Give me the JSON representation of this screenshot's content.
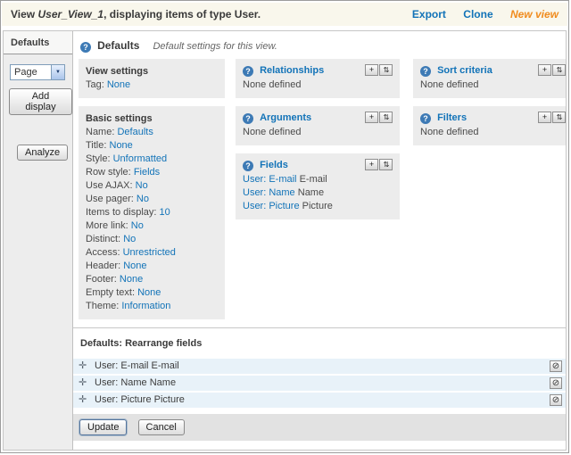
{
  "header": {
    "title_prefix": "View",
    "view_name": "User_View_1",
    "title_suffix": ", displaying items of type User.",
    "links": {
      "export": "Export",
      "clone": "Clone",
      "new_view": "New view"
    }
  },
  "sidebar": {
    "tab_label": "Defaults",
    "display_select_value": "Page",
    "add_display_label": "Add display",
    "analyze_label": "Analyze"
  },
  "main": {
    "section_title": "Defaults",
    "section_description": "Default settings for this view.",
    "view_settings": {
      "title": "View settings",
      "items": [
        {
          "label": "Tag:",
          "value": "None"
        }
      ]
    },
    "basic_settings": {
      "title": "Basic settings",
      "items": [
        {
          "label": "Name:",
          "value": "Defaults"
        },
        {
          "label": "Title:",
          "value": "None"
        },
        {
          "label": "Style:",
          "value": "Unformatted"
        },
        {
          "label": "Row style:",
          "value": "Fields"
        },
        {
          "label": "Use AJAX:",
          "value": "No"
        },
        {
          "label": "Use pager:",
          "value": "No"
        },
        {
          "label": "Items to display:",
          "value": "10"
        },
        {
          "label": "More link:",
          "value": "No"
        },
        {
          "label": "Distinct:",
          "value": "No"
        },
        {
          "label": "Access:",
          "value": "Unrestricted"
        },
        {
          "label": "Header:",
          "value": "None"
        },
        {
          "label": "Footer:",
          "value": "None"
        },
        {
          "label": "Empty text:",
          "value": "None"
        },
        {
          "label": "Theme:",
          "value": "Information"
        }
      ]
    },
    "relationships": {
      "title": "Relationships",
      "empty": "None defined"
    },
    "arguments": {
      "title": "Arguments",
      "empty": "None defined"
    },
    "fields": {
      "title": "Fields",
      "items": [
        {
          "link": "User: E-mail",
          "suffix": "E-mail"
        },
        {
          "link": "User: Name",
          "suffix": "Name"
        },
        {
          "link": "User: Picture",
          "suffix": "Picture"
        }
      ]
    },
    "sort_criteria": {
      "title": "Sort criteria",
      "empty": "None defined"
    },
    "filters": {
      "title": "Filters",
      "empty": "None defined"
    }
  },
  "rearrange": {
    "title": "Defaults: Rearrange fields",
    "rows": [
      "User: E-mail E-mail",
      "User: Name Name",
      "User: Picture Picture"
    ],
    "update_label": "Update",
    "cancel_label": "Cancel"
  },
  "icons": {
    "help": "?",
    "add": "+",
    "rearrange": "⇅",
    "drag": "✛",
    "remove": "⊘",
    "select_arrow": "▼"
  },
  "colors": {
    "link_blue": "#1273b8",
    "accent_orange": "#f08b1d",
    "topbar_bg": "#f9f7ec",
    "box_bg": "#ececec",
    "row_blue": "#e8f2f9"
  }
}
